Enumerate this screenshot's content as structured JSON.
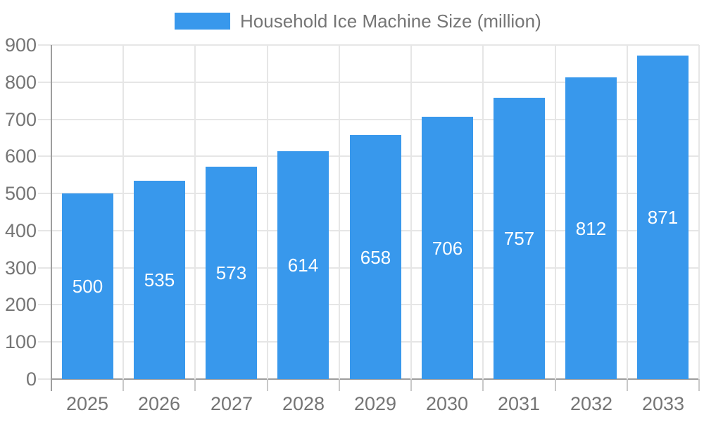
{
  "chart_data": {
    "type": "bar",
    "title": "Household Ice Machine Size (million)",
    "legend_entries": [
      "Household Ice Machine Size (million)"
    ],
    "legend_position": "top",
    "categories": [
      "2025",
      "2026",
      "2027",
      "2028",
      "2029",
      "2030",
      "2031",
      "2032",
      "2033"
    ],
    "series": [
      {
        "name": "Household Ice Machine Size (million)",
        "values": [
          500,
          535,
          573,
          614,
          658,
          706,
          757,
          812,
          871
        ]
      }
    ],
    "bar_value_labels_visible": true,
    "xlabel": "",
    "ylabel": "",
    "ylim": [
      0,
      900
    ],
    "ytick_interval": 100,
    "yticks": [
      0,
      100,
      200,
      300,
      400,
      500,
      600,
      700,
      800,
      900
    ],
    "grid": true
  },
  "colors": {
    "bar": "#3898ec",
    "axis_text": "#757575",
    "bar_label_text": "#ffffff",
    "grid_line": "#e6e6e6",
    "axis_line": "#9e9e9e",
    "tick_line": "#c9c9c9",
    "background": "#ffffff"
  }
}
